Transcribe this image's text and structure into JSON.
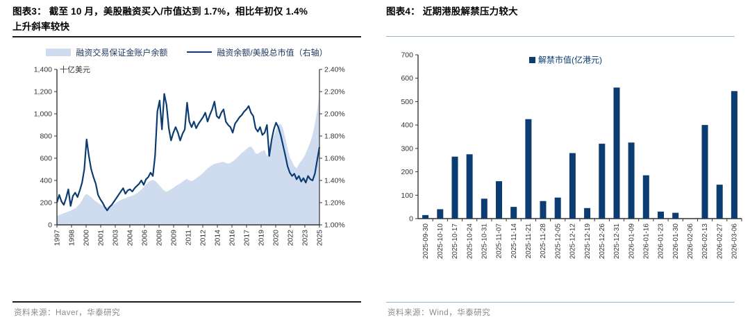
{
  "theme": {
    "navy": "#0b3c72",
    "area_fill": "#cfdbee",
    "rule_dark": "#1a1a1a",
    "rule_light": "#9db4cd",
    "source_gray": "#8a8a8a"
  },
  "figures": [
    {
      "title_line1": "图表3：  截至 10 月，美股融资买入/市值达到 1.7%，相比年初仅 1.4%",
      "title_line2": "上升斜率较快",
      "source": "资料来源：Haver，华泰研究"
    },
    {
      "title": "图表4：  近期港股解禁压力较大",
      "source": "资料来源：Wind，华泰研究"
    }
  ],
  "chart_data": [
    {
      "type": "combo",
      "unit_label": "十亿美元",
      "x_tick_labels": [
        "1997",
        "1998",
        "2000",
        "2001",
        "2003",
        "2004",
        "2006",
        "2008",
        "2009",
        "2011",
        "2012",
        "2014",
        "2016",
        "2017",
        "2019",
        "2020",
        "2022",
        "2023",
        "2025"
      ],
      "left_axis": {
        "min": 0,
        "max": 1400,
        "tick_labels": [
          "0",
          "200",
          "400",
          "600",
          "800",
          "1,000",
          "1,200",
          "1,400"
        ]
      },
      "right_axis": {
        "min": 1.0,
        "max": 2.4,
        "tick_labels": [
          "1.00%",
          "1.20%",
          "1.40%",
          "1.60%",
          "1.80%",
          "2.00%",
          "2.20%",
          "2.40%"
        ]
      },
      "x_range_note": "quarterly points 1997Q1-2025Q4",
      "series": [
        {
          "name": "融资交易保证金账户余额",
          "type": "area",
          "axis": "left",
          "color": "#cfdbee",
          "values": [
            80,
            88,
            96,
            105,
            112,
            120,
            128,
            138,
            148,
            168,
            190,
            220,
            262,
            280,
            265,
            248,
            228,
            212,
            198,
            184,
            174,
            164,
            158,
            163,
            170,
            184,
            198,
            214,
            224,
            234,
            240,
            250,
            256,
            264,
            274,
            284,
            300,
            318,
            340,
            364,
            382,
            398,
            405,
            396,
            376,
            352,
            330,
            308,
            298,
            308,
            320,
            334,
            348,
            362,
            374,
            388,
            404,
            414,
            400,
            394,
            404,
            418,
            434,
            450,
            468,
            488,
            508,
            524,
            538,
            548,
            554,
            560,
            564,
            568,
            558,
            552,
            558,
            572,
            588,
            608,
            628,
            648,
            664,
            684,
            700,
            706,
            680,
            644,
            640,
            655,
            665,
            675,
            620,
            660,
            730,
            800,
            860,
            900,
            910,
            870,
            790,
            690,
            610,
            570,
            530,
            510,
            545,
            575,
            605,
            645,
            695,
            745,
            810,
            910,
            1030,
            1170
          ]
        },
        {
          "name": "融资余额/美股总市值（右轴）",
          "type": "line",
          "axis": "right",
          "color": "#0b3c72",
          "values": [
            1.2,
            1.27,
            1.21,
            1.18,
            1.24,
            1.32,
            1.17,
            1.26,
            1.29,
            1.25,
            1.31,
            1.38,
            1.5,
            1.77,
            1.62,
            1.5,
            1.43,
            1.37,
            1.27,
            1.23,
            1.2,
            1.16,
            1.13,
            1.16,
            1.18,
            1.21,
            1.24,
            1.27,
            1.3,
            1.33,
            1.28,
            1.31,
            1.32,
            1.3,
            1.33,
            1.35,
            1.37,
            1.4,
            1.36,
            1.41,
            1.43,
            1.47,
            1.44,
            1.62,
            2.02,
            2.12,
            1.86,
            2.18,
            2.08,
            1.87,
            1.76,
            1.83,
            1.88,
            1.83,
            1.76,
            1.82,
            1.86,
            2.1,
            1.93,
            1.88,
            1.93,
            1.87,
            1.91,
            1.94,
            1.97,
            2.01,
            1.93,
            1.99,
            2.04,
            2.11,
            1.98,
            1.96,
            2.01,
            2.04,
            1.93,
            1.9,
            1.88,
            1.83,
            1.91,
            1.94,
            1.97,
            1.99,
            2.02,
            2.04,
            2.07,
            2.01,
            1.98,
            1.87,
            1.84,
            1.88,
            1.81,
            1.83,
            1.9,
            1.62,
            1.76,
            1.86,
            1.92,
            1.88,
            1.81,
            1.72,
            1.63,
            1.53,
            1.47,
            1.44,
            1.46,
            1.41,
            1.44,
            1.39,
            1.42,
            1.38,
            1.44,
            1.41,
            1.4,
            1.46,
            1.58,
            1.7
          ]
        }
      ]
    },
    {
      "type": "bar",
      "legend": "解禁市值(亿港元)",
      "categories": [
        "2025-09-30",
        "2025-10-10",
        "2025-10-17",
        "2025-10-24",
        "2025-10-31",
        "2025-11-07",
        "2025-11-14",
        "2025-11-21",
        "2025-11-28",
        "2025-12-05",
        "2025-12-12",
        "2025-12-19",
        "2025-12-26",
        "2025-12-31",
        "2026-01-09",
        "2026-01-16",
        "2026-01-23",
        "2026-01-30",
        "2026-02-06",
        "2026-02-13",
        "2026-02-27",
        "2026-03-06"
      ],
      "values": [
        15,
        40,
        265,
        275,
        85,
        160,
        50,
        425,
        75,
        90,
        280,
        45,
        320,
        560,
        325,
        185,
        30,
        25,
        0,
        400,
        145,
        545
      ],
      "ylim": [
        0,
        700
      ],
      "y_tick_labels": [
        "0",
        "100",
        "200",
        "300",
        "400",
        "500",
        "600",
        "700"
      ],
      "bar_color": "#0b3c72",
      "grid": false,
      "legend_position": "top-center"
    }
  ]
}
